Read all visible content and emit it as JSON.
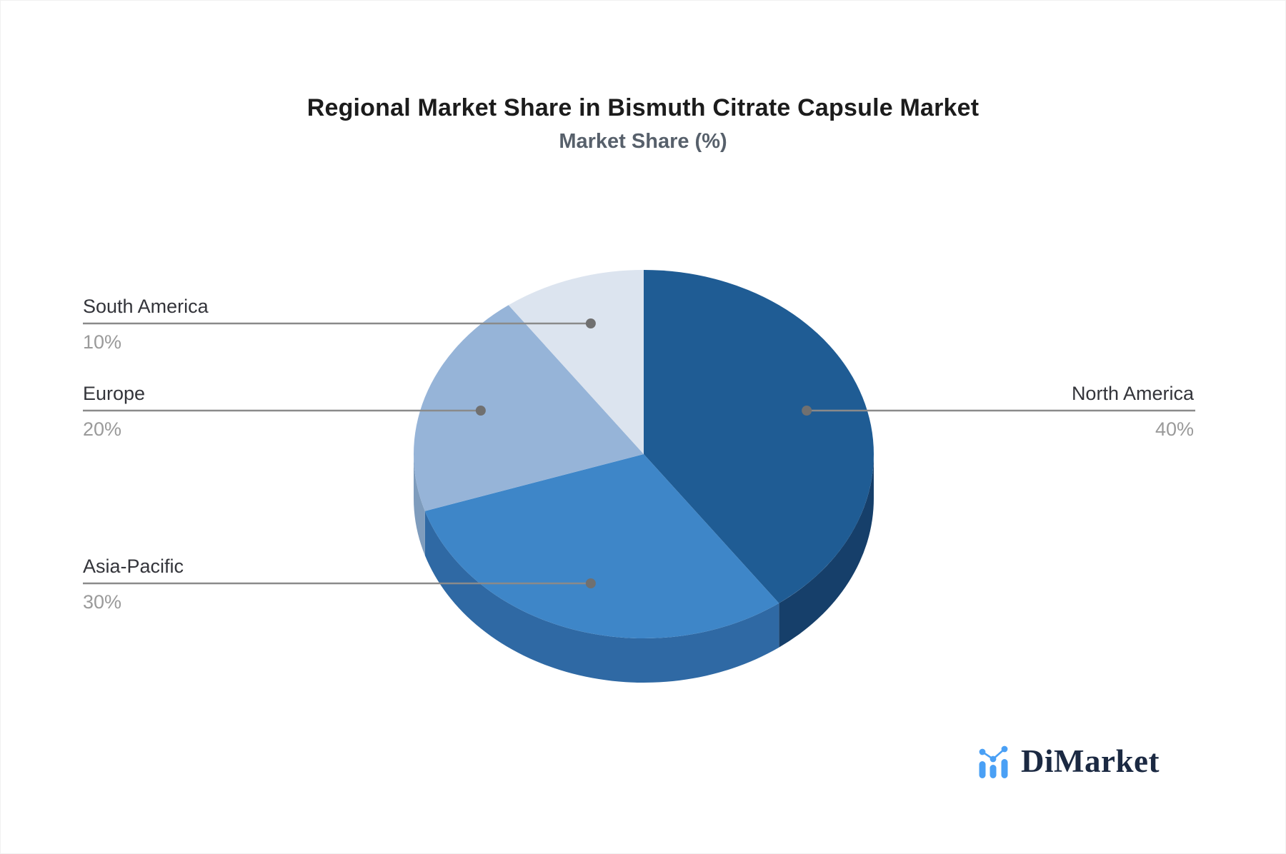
{
  "header": {
    "title": "Regional Market Share in Bismuth Citrate Capsule Market",
    "subtitle": "Market Share (%)"
  },
  "chart_data": {
    "type": "pie",
    "style": "3d",
    "title": "Regional Market Share in Bismuth Citrate Capsule Market",
    "subtitle": "Market Share (%)",
    "unit": "%",
    "start_angle": "12-o-clock",
    "direction": "clockwise",
    "legend_position": "callout-labels",
    "slices": [
      {
        "label": "North America",
        "value": 40,
        "display_value": "40%",
        "color": "#1f5c94",
        "side_color": "#163f6a",
        "label_side": "right"
      },
      {
        "label": "Asia-Pacific",
        "value": 30,
        "display_value": "30%",
        "color": "#3e86c8",
        "side_color": "#2f69a4",
        "label_side": "left"
      },
      {
        "label": "Europe",
        "value": 20,
        "display_value": "20%",
        "color": "#96b4d8",
        "side_color": "#7e9cbd",
        "label_side": "left"
      },
      {
        "label": "South America",
        "value": 10,
        "display_value": "10%",
        "color": "#dce4ef",
        "side_color": "#c2cddd",
        "label_side": "left"
      }
    ]
  },
  "branding": {
    "logo_text": "DiMarket",
    "logo_icon": "bar-line-chart-icon",
    "icon_color": "#4aa0f5",
    "text_color": "#1b2942"
  },
  "style": {
    "background": "#ffffff",
    "leader_line_color": "#8a8a8a",
    "leader_dot_color": "#707070",
    "label_color": "#33343a",
    "value_color": "#9a9a9a",
    "title_color": "#1c1c1c",
    "subtitle_color": "#57606b"
  }
}
